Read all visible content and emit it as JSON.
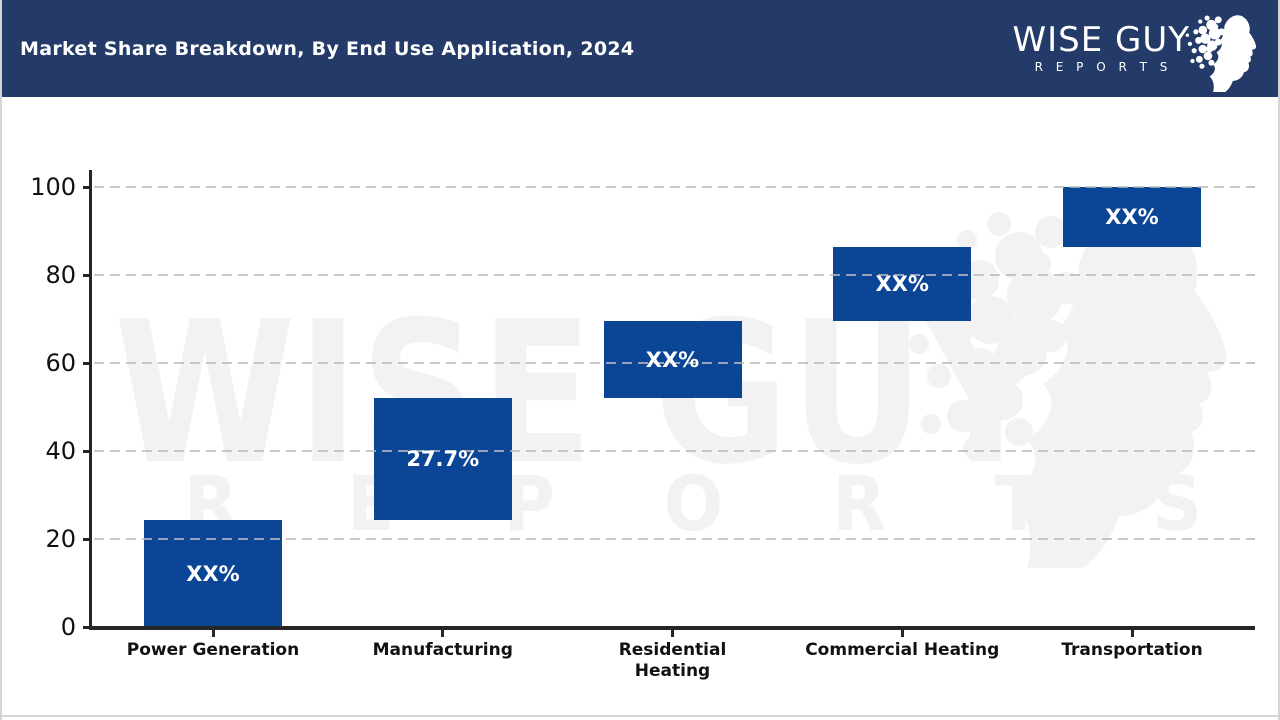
{
  "page": {
    "background": "#ffffff",
    "frame_color": "#d4d4d8"
  },
  "header": {
    "bg_color": "#243a68",
    "title": "Market Share Breakdown, By End Use Application, 2024",
    "logo": {
      "name_line": "WISE GUY",
      "reports_line": "R E P O R T S"
    }
  },
  "watermark": {
    "line1": "WISE GUY",
    "line2": "R E P O R T S"
  },
  "chart_data": {
    "type": "bar",
    "subtype": "floating-waterfall",
    "title": "Market Share Breakdown, By End Use Application, 2024",
    "categories": [
      "Power Generation",
      "Manufacturing",
      "Residential\nHeating",
      "Commercial Heating",
      "Transportation"
    ],
    "series": [
      {
        "name": "Market share (%)",
        "segments": [
          {
            "category": "Power Generation",
            "start": 0,
            "end": 24.3,
            "label": "XX%"
          },
          {
            "category": "Manufacturing",
            "start": 24.3,
            "end": 52.0,
            "label": "27.7%",
            "value": 27.7
          },
          {
            "category": "Residential\nHeating",
            "start": 52.0,
            "end": 69.5,
            "label": "XX%"
          },
          {
            "category": "Commercial Heating",
            "start": 69.5,
            "end": 86.3,
            "label": "XX%"
          },
          {
            "category": "Transportation",
            "start": 86.3,
            "end": 100,
            "label": "XX%"
          }
        ]
      }
    ],
    "yticks": [
      0,
      20,
      40,
      60,
      80,
      100
    ],
    "ylim": [
      0,
      104
    ],
    "xlabel": "",
    "ylabel": "",
    "grid": "horizontal-dashed",
    "legend": "none",
    "bar_color": "#0a4596",
    "bar_label_color": "#ffffff"
  }
}
